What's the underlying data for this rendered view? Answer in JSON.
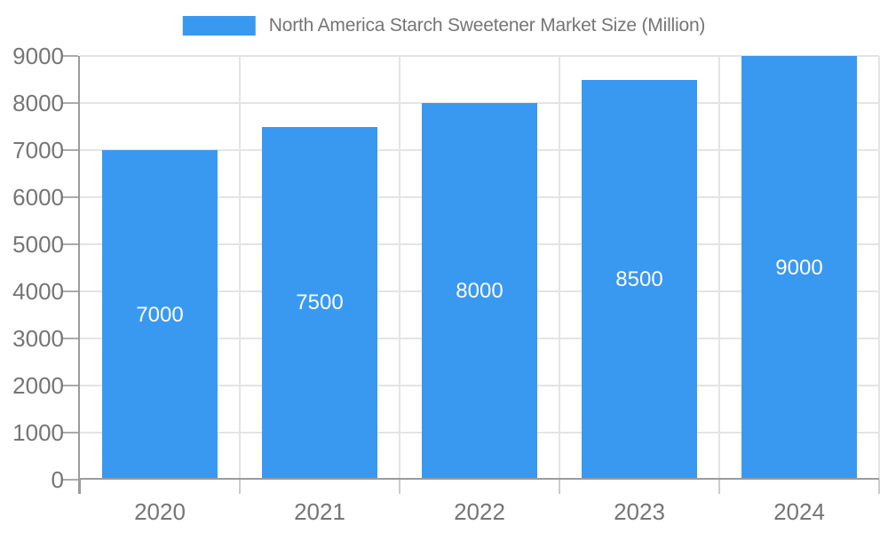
{
  "chart_data": {
    "type": "bar",
    "title": "North America Starch Sweetener Market Size (Million)",
    "categories": [
      "2020",
      "2021",
      "2022",
      "2023",
      "2024"
    ],
    "series": [
      {
        "name": "North America Starch Sweetener Market Size (Million)",
        "values": [
          7000,
          7500,
          8000,
          8500,
          9000
        ]
      }
    ],
    "xlabel": "",
    "ylabel": "",
    "ylim": [
      0,
      9000
    ],
    "yticks": [
      0,
      1000,
      2000,
      3000,
      4000,
      5000,
      6000,
      7000,
      8000,
      9000
    ],
    "grid": {
      "horizontal": true,
      "vertical": true
    },
    "legend": {
      "position": "top",
      "marker": "rect"
    },
    "value_labels_inside_bars": true,
    "colors": {
      "bar": "#3999F0",
      "value_label": "#FFFFFF",
      "axis_text": "#757575",
      "legend_text": "#757575",
      "gridline": "#E4E4E4",
      "axis_line": "#9B9B9B",
      "y_tick": "#ABABAB",
      "x_tick": "#CCCCCC",
      "background": "#FFFFFF"
    }
  }
}
